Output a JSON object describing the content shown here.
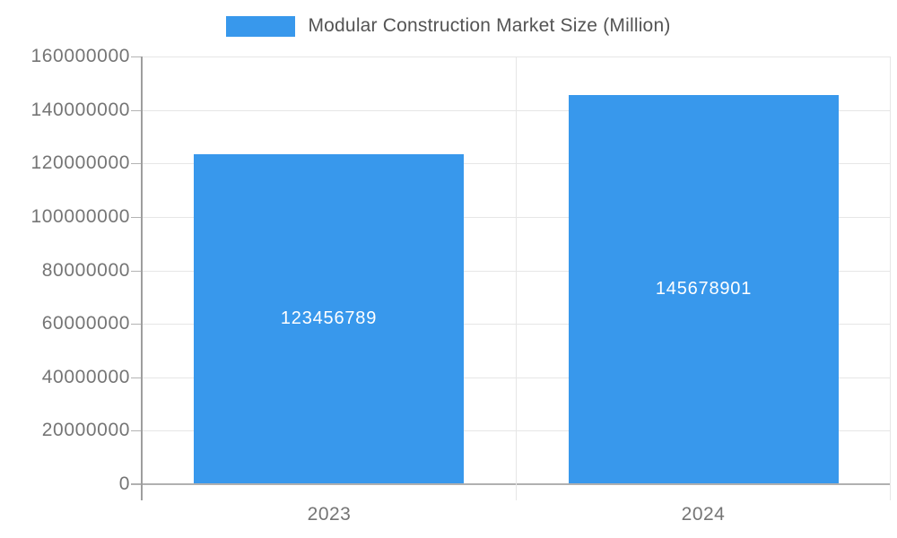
{
  "legend": {
    "label": "Modular Construction Market Size (Million)",
    "swatch_color": "#3898EC"
  },
  "chart_data": {
    "type": "bar",
    "title": "Modular Construction Market Size (Million)",
    "categories": [
      "2023",
      "2024"
    ],
    "series": [
      {
        "name": "Modular Construction Market Size (Million)",
        "color": "#3898EC",
        "values": [
          123456789,
          145678901
        ]
      }
    ],
    "value_labels": [
      "123456789",
      "145678901"
    ],
    "xlabel": "",
    "ylabel": "",
    "ylim": [
      0,
      160000000
    ],
    "yticks": [
      0,
      20000000,
      40000000,
      60000000,
      80000000,
      100000000,
      120000000,
      140000000,
      160000000
    ],
    "ytick_labels": [
      "0",
      "20000000",
      "40000000",
      "60000000",
      "80000000",
      "100000000",
      "120000000",
      "140000000",
      "160000000"
    ],
    "grid": true,
    "legend_position": "top-center",
    "value_label_position": "inside-center"
  },
  "colors": {
    "bar": "#3898EC",
    "grid_line": "#e6e6e6",
    "zero_line": "#b0b0b0",
    "axis_line": "#9e9e9e",
    "tick": "#b3b3b3",
    "axis_label": "#757575",
    "legend_text": "#545454",
    "value_label": "#ffffff"
  }
}
